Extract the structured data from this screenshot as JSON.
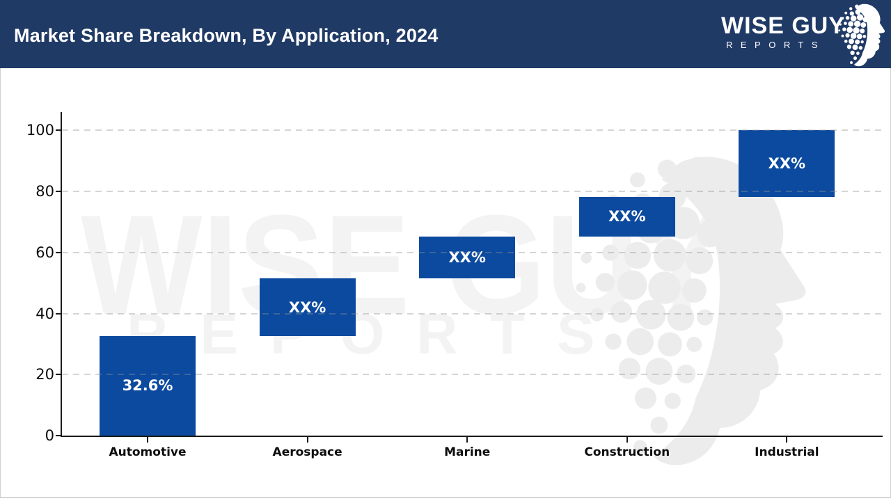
{
  "header": {
    "title": "Market Share Breakdown, By Application, 2024",
    "logo_line1": "WISE GUY",
    "logo_line2": "REPORTS",
    "bg_color": "#203a66"
  },
  "watermark": {
    "line1": "WISE GUY",
    "line2": "REPORTS"
  },
  "chart_data": {
    "type": "bar",
    "subtype": "waterfall",
    "title": "Market Share Breakdown, By Application, 2024",
    "categories": [
      "Automotive",
      "Aerospace",
      "Marine",
      "Construction",
      "Industrial"
    ],
    "segments": [
      {
        "category": "Automotive",
        "start": 0,
        "end": 32.6,
        "label": "32.6%"
      },
      {
        "category": "Aerospace",
        "start": 32.6,
        "end": 51.5,
        "label": "XX%"
      },
      {
        "category": "Marine",
        "start": 51.5,
        "end": 65.1,
        "label": "XX%"
      },
      {
        "category": "Construction",
        "start": 65.3,
        "end": 78.1,
        "label": "XX%"
      },
      {
        "category": "Industrial",
        "start": 78.3,
        "end": 100,
        "label": "XX%"
      }
    ],
    "xlabel": "",
    "ylabel": "",
    "ylim": [
      0,
      106
    ],
    "yticks": [
      0,
      20,
      40,
      60,
      80,
      100
    ],
    "grid": "horizontal-dashed",
    "legend": "none",
    "bar_color": "#0b4a9f",
    "bar_label_color": "#ffffff",
    "axis_color": "#1a1a1a"
  }
}
